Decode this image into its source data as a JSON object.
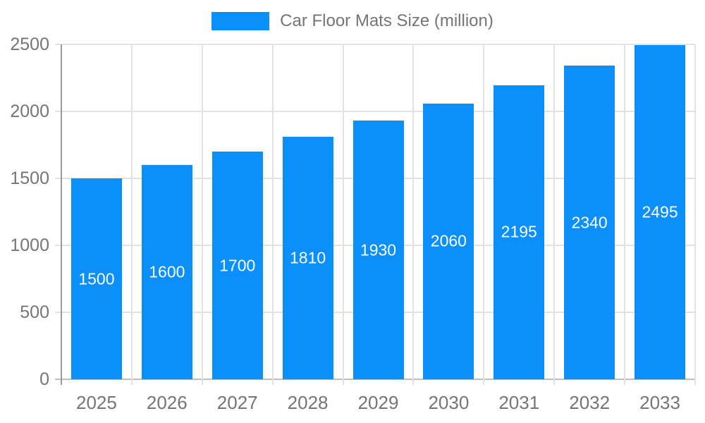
{
  "chart_data": {
    "type": "bar",
    "title": "Car Floor Mats Size (million)",
    "categories": [
      "2025",
      "2026",
      "2027",
      "2028",
      "2029",
      "2030",
      "2031",
      "2032",
      "2033"
    ],
    "values": [
      1500,
      1600,
      1700,
      1810,
      1930,
      2060,
      2195,
      2340,
      2495
    ],
    "xlabel": "",
    "ylabel": "",
    "ylim": [
      0,
      2500
    ],
    "yticks": [
      0,
      500,
      1000,
      1500,
      2000,
      2500
    ],
    "grid": "horizontal-and-vertical",
    "legend_position": "top-center",
    "bar_value_labels": "inside-centered"
  },
  "colors": {
    "bar": "#0A8FFB",
    "bar_label_text": "#FFFFFF",
    "grid_line": "#E2E2E2",
    "baseline": "#BDBDBD",
    "axis_line": "#9A9A9A",
    "tick_text": "#757575",
    "legend_text": "#757575",
    "background": "#FFFFFF"
  }
}
